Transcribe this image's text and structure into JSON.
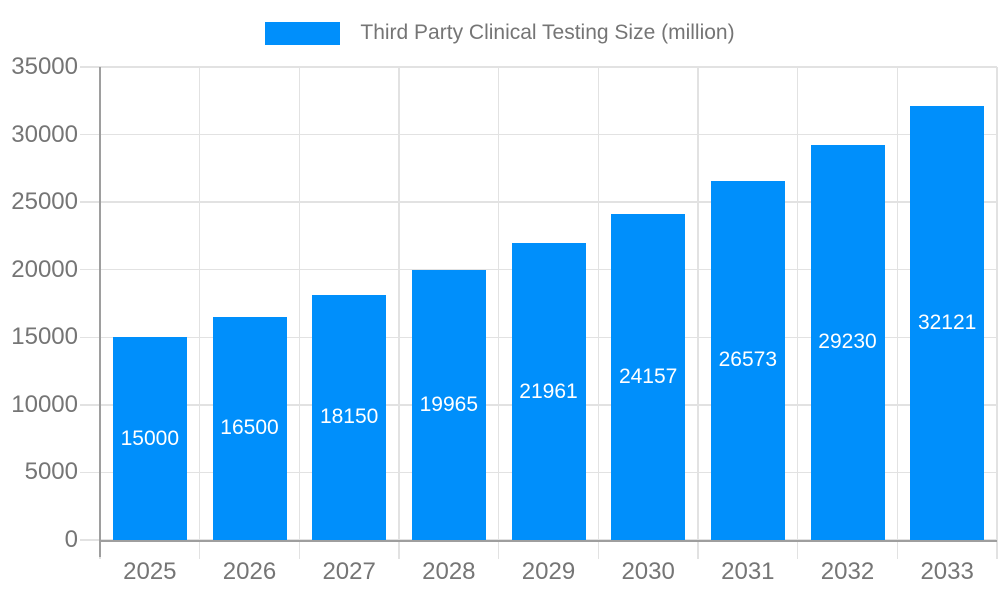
{
  "chart_data": {
    "type": "bar",
    "title": "",
    "xlabel": "",
    "ylabel": "",
    "legend_label": "Third Party Clinical Testing Size (million)",
    "legend_position": "top-center",
    "categories": [
      "2025",
      "2026",
      "2027",
      "2028",
      "2029",
      "2030",
      "2031",
      "2032",
      "2033"
    ],
    "values": [
      15000,
      16500,
      18150,
      19965,
      21961,
      24157,
      26573,
      29230,
      32121
    ],
    "data_labels": [
      "15000",
      "16500",
      "18150",
      "19965",
      "21961",
      "24157",
      "26573",
      "29230",
      "32121"
    ],
    "y_ticks": [
      0,
      5000,
      10000,
      15000,
      20000,
      25000,
      30000,
      35000
    ],
    "ylim": [
      0,
      35000
    ],
    "grid": true,
    "data_label_position": "inside-center",
    "colors": {
      "bar": "#008FFB",
      "bar_label": "#FFFFFF",
      "axis_text": "#757575",
      "legend_text": "#757575",
      "gridline": "#E2E2E2",
      "axis_line": "#9E9E9E",
      "background": "#FFFFFF"
    }
  }
}
